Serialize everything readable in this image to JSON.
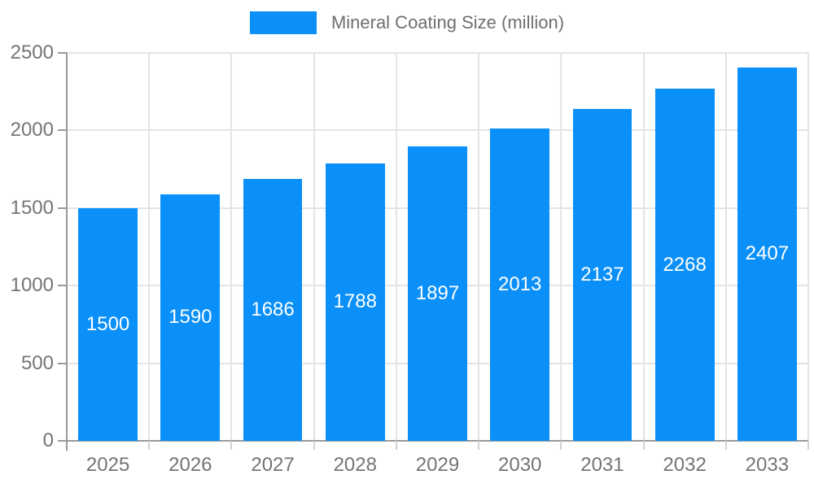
{
  "chart_data": {
    "type": "bar",
    "title": "",
    "legend": "Mineral Coating Size (million)",
    "legend_position": "top-center",
    "categories": [
      "2025",
      "2026",
      "2027",
      "2028",
      "2029",
      "2030",
      "2031",
      "2032",
      "2033"
    ],
    "values": [
      1500,
      1590,
      1686,
      1788,
      1897,
      2013,
      2137,
      2268,
      2407
    ],
    "xlabel": "",
    "ylabel": "",
    "ylim": [
      0,
      2500
    ],
    "yticks": [
      0,
      500,
      1000,
      1500,
      2000,
      2500
    ],
    "grid": true,
    "bar_labels_inside": true,
    "colors": {
      "bar": "#0a90f8",
      "bar_label_text": "#ffffff",
      "axis_line": "#9a9a9a",
      "grid_line": "#e4e4e4",
      "x_tick_mark": "#d2d2d2",
      "tick_label_text": "#757575",
      "legend_text": "#6f6f6f"
    }
  }
}
